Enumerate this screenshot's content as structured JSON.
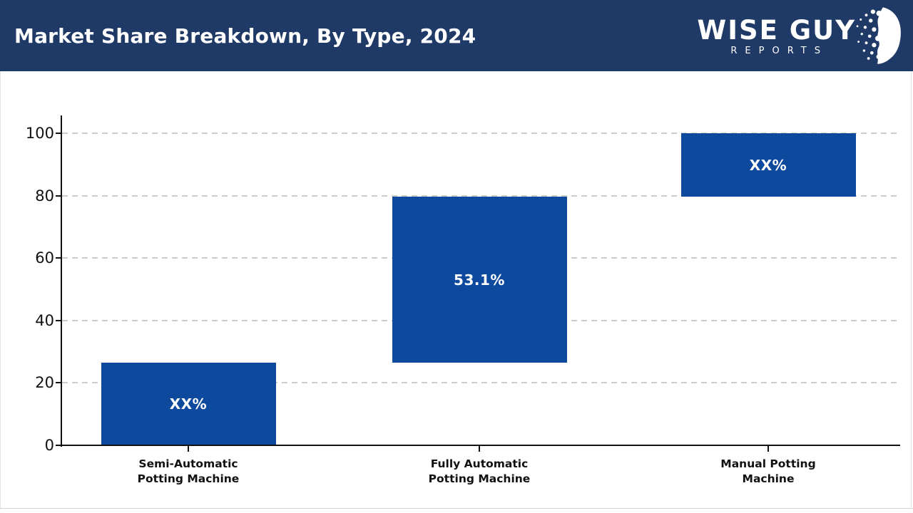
{
  "header": {
    "title": "Market Share Breakdown, By Type, 2024",
    "bg_color": "#203a67",
    "logo": {
      "line1": "WISE GUY",
      "line2": "REPORTS"
    }
  },
  "watermark": {
    "line1": "WISE GUY",
    "line2": "R E P O R T S"
  },
  "chart_data": {
    "type": "bar",
    "subtype": "stacked-waterfall",
    "title": "Market Share Breakdown, By Type, 2024",
    "categories": [
      [
        "Semi-Automatic",
        "Potting Machine"
      ],
      [
        "Fully Automatic",
        "Potting Machine"
      ],
      [
        "Manual Potting",
        "Machine"
      ]
    ],
    "segments": [
      {
        "category": "Semi-Automatic Potting Machine",
        "base": 0,
        "value": 26.5,
        "label": "XX%"
      },
      {
        "category": "Fully Automatic Potting Machine",
        "base": 26.5,
        "value": 53.1,
        "label": "53.1%"
      },
      {
        "category": "Manual Potting Machine",
        "base": 79.6,
        "value": 20.4,
        "label": "XX%"
      }
    ],
    "yticks": [
      0,
      20,
      40,
      60,
      80,
      100
    ],
    "ylim": [
      0,
      105.7
    ],
    "xlabel": "",
    "ylabel": "",
    "bar_color": "#0d4a9d",
    "bar_label_color": "#ffffff",
    "grid": "horizontal-dashed",
    "gridline_color": "#cccccc",
    "legend": "none"
  }
}
